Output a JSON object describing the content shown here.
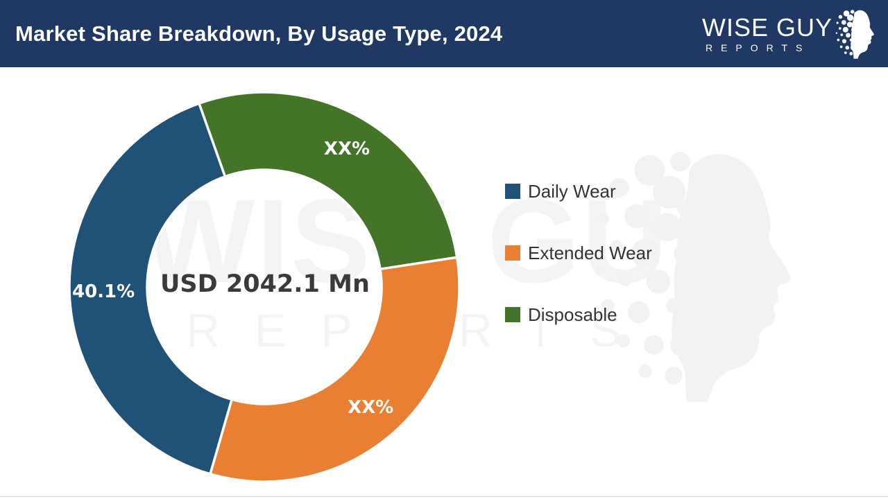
{
  "header": {
    "title": "Market Share Breakdown, By Usage Type, 2024",
    "logo": {
      "line1": "WISE GUY",
      "line2": "REPORTS"
    }
  },
  "watermark": {
    "line1": "WISE GUY",
    "line2": "REPORTS"
  },
  "chart_data": {
    "type": "pie",
    "variant": "donut",
    "title": "Market Share Breakdown, By Usage Type, 2024",
    "center_label": "USD 2042.1 Mn",
    "legend_position": "right",
    "start_angle_deg": 196.1,
    "draw_order": [
      0,
      2,
      1
    ],
    "segments": [
      {
        "label": "Daily Wear",
        "value": 40.1,
        "display_label": "40.1%",
        "color": "#1f5276"
      },
      {
        "label": "Extended Wear",
        "value": 31.9,
        "display_label": "XX%",
        "color": "#e87f33"
      },
      {
        "label": "Disposable",
        "value": 28.0,
        "display_label": "XX%",
        "color": "#447428"
      }
    ],
    "colors": {
      "header_background": "#1f3864",
      "text_dark": "#333333",
      "slice_label_text": "#ffffff",
      "watermark": "#f2f2f2",
      "footer_divider": "#d9d9d9"
    }
  }
}
